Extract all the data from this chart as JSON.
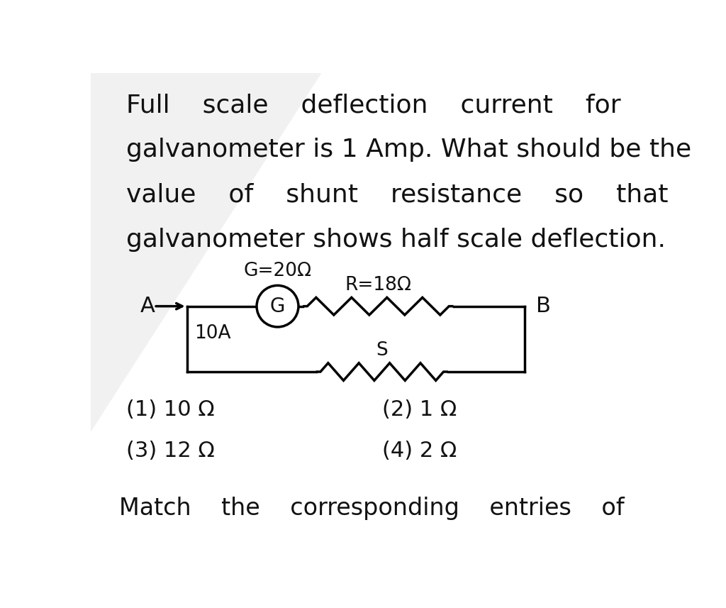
{
  "background_color": "#ffffff",
  "text_color": "#111111",
  "lines": [
    "Full    scale    deflection    current    for",
    "galvanometer is 1 Amp. What should be the",
    "value    of    shunt    resistance    so    that",
    "galvanometer shows half scale deflection."
  ],
  "circuit": {
    "A_label": "A",
    "B_label": "B",
    "G_label": "G",
    "G_value": "G=20Ω",
    "R_value": "R=18Ω",
    "S_label": "S",
    "current_label": "10A"
  },
  "options_left": [
    "(1) 10 Ω",
    "(3) 12 Ω"
  ],
  "options_right": [
    "(2) 1 Ω",
    "(4) 2 Ω"
  ],
  "bottom_text": "Match    the    corresponding    entries    of",
  "shadow_color": "#d8d8d8",
  "wire_color": "#000000",
  "lw": 2.0,
  "font_size_question": 26,
  "font_size_circuit": 19,
  "font_size_options": 22,
  "font_size_bottom": 24
}
